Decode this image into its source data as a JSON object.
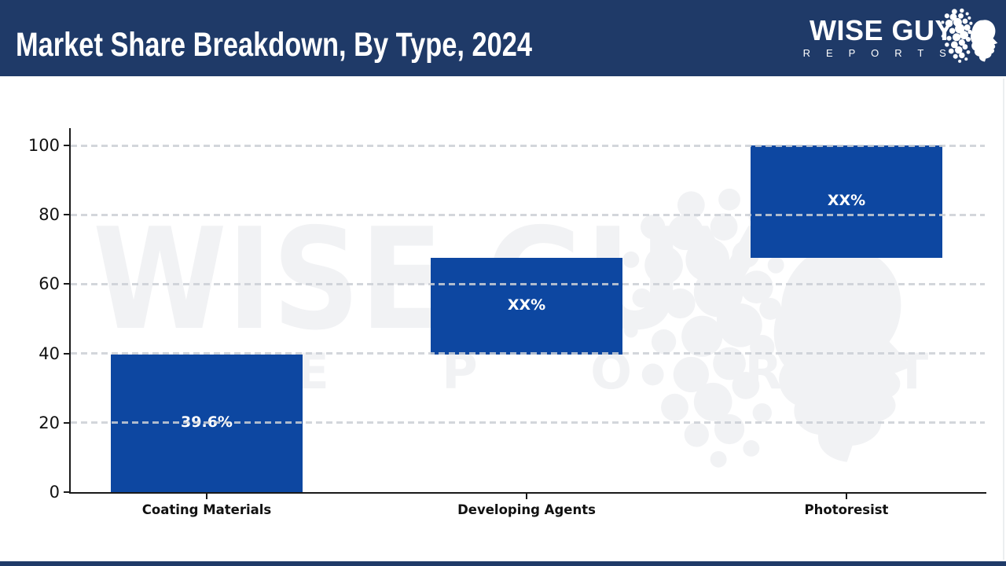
{
  "header": {
    "title": "Market Share Breakdown, By Type, 2024",
    "logo_line1": "WISE GUY",
    "logo_line2": "R E P O R T S"
  },
  "watermark": {
    "line1": "WISE GUY",
    "line2": "R E P O R T S"
  },
  "theme": {
    "header_bg": "#1f3a68",
    "footer_bg": "#1f3a68",
    "bar_color": "#0d47a1",
    "axis_color": "#1a1a1a",
    "grid_color": "#d9dce1",
    "watermark_color": "#f1f2f4",
    "title_color": "#ffffff",
    "bar_label_color": "#ffffff"
  },
  "chart_data": {
    "type": "bar",
    "variant": "waterfall-segments",
    "title": "Market Share Breakdown, By Type, 2024",
    "categories": [
      "Coating Materials",
      "Developing Agents",
      "Photoresist"
    ],
    "segments": [
      {
        "category": "Coating Materials",
        "start": 0,
        "end": 39.6,
        "label": "39.6%"
      },
      {
        "category": "Developing Agents",
        "start": 39.6,
        "end": 67.5,
        "label": "XX%"
      },
      {
        "category": "Photoresist",
        "start": 67.5,
        "end": 100,
        "label": "XX%"
      }
    ],
    "yticks": [
      0,
      20,
      40,
      60,
      80,
      100
    ],
    "ylim": [
      0,
      105
    ],
    "xlabel": "",
    "ylabel": "",
    "grid": "dashed-horizontal",
    "legend": "none",
    "bar_color": "#0d47a1"
  }
}
